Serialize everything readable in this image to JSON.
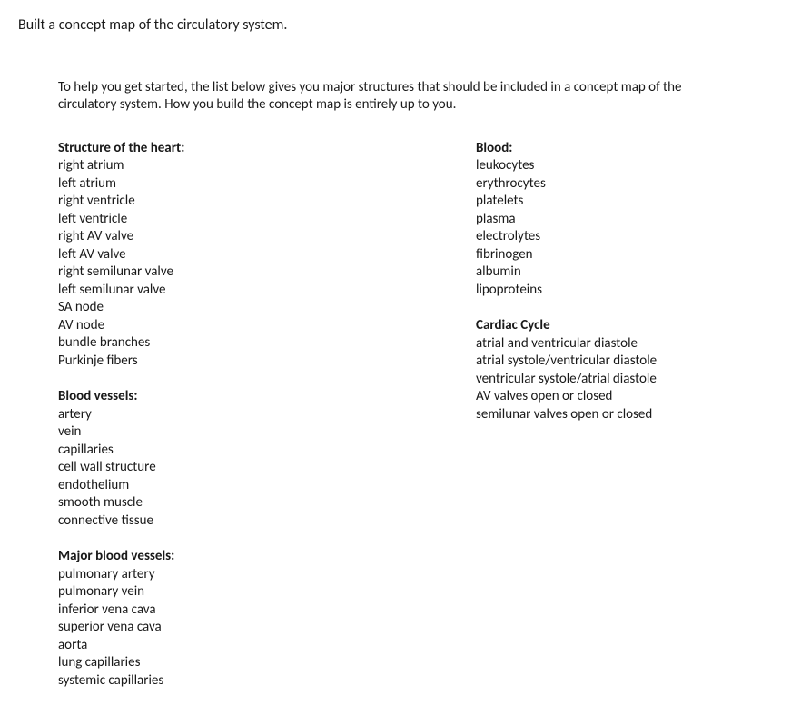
{
  "top_line": "Built a concept map of the circulatory system.",
  "intro": "To help you get started, the list below gives you major structures that should be included in a concept map of the circulatory system. How you build the concept map is entirely up to you.",
  "left_column": [
    {
      "heading": "Structure of the heart:",
      "items": [
        "right atrium",
        "left atrium",
        "right ventricle",
        "left ventricle",
        "right AV valve",
        "left AV valve",
        "right semilunar valve",
        "left semilunar valve",
        "SA node",
        "AV node",
        "bundle branches",
        "Purkinje fibers"
      ]
    },
    {
      "heading": "Blood vessels:",
      "items": [
        "artery",
        "vein",
        "capillaries",
        "cell wall structure",
        "endothelium",
        "smooth muscle",
        "connective tissue"
      ]
    },
    {
      "heading": "Major blood vessels:",
      "items": [
        "pulmonary artery",
        "pulmonary vein",
        "inferior vena cava",
        "superior vena cava",
        "aorta",
        "lung capillaries",
        "systemic capillaries"
      ]
    }
  ],
  "right_column": [
    {
      "heading": "Blood:",
      "items": [
        "leukocytes",
        "erythrocytes",
        "platelets",
        "plasma",
        "electrolytes",
        "fibrinogen",
        "albumin",
        "lipoproteins"
      ]
    },
    {
      "heading": "Cardiac Cycle",
      "items": [
        "atrial and ventricular diastole",
        "atrial systole/ventricular diastole",
        "ventricular systole/atrial diastole",
        "AV valves open or closed",
        "semilunar valves open or closed"
      ]
    }
  ]
}
